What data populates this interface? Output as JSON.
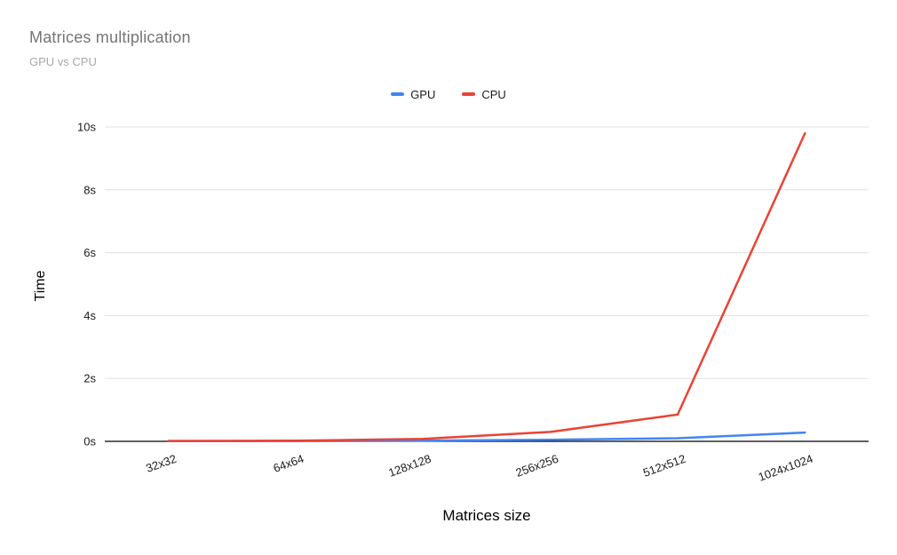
{
  "chart_data": {
    "type": "line",
    "title": "Matrices multiplication",
    "subtitle": "GPU vs CPU",
    "xlabel": "Matrices size",
    "ylabel": "Time",
    "categories": [
      "32x32",
      "64x64",
      "128x128",
      "256x256",
      "512x512",
      "1024x1024"
    ],
    "series": [
      {
        "name": "GPU",
        "color": "#4285F4",
        "values": [
          0.01,
          0.01,
          0.02,
          0.05,
          0.1,
          0.28
        ]
      },
      {
        "name": "CPU",
        "color": "#EA4335",
        "values": [
          0.01,
          0.02,
          0.08,
          0.3,
          0.85,
          9.8
        ]
      }
    ],
    "y_ticks": [
      "0s",
      "2s",
      "4s",
      "6s",
      "8s",
      "10s"
    ],
    "ylim": [
      0,
      10
    ],
    "legend_position": "top",
    "grid": true,
    "gridline_color": "#e0e0e0",
    "axis_line_color": "#000000",
    "tick_label_color": "#1a1a1a"
  }
}
